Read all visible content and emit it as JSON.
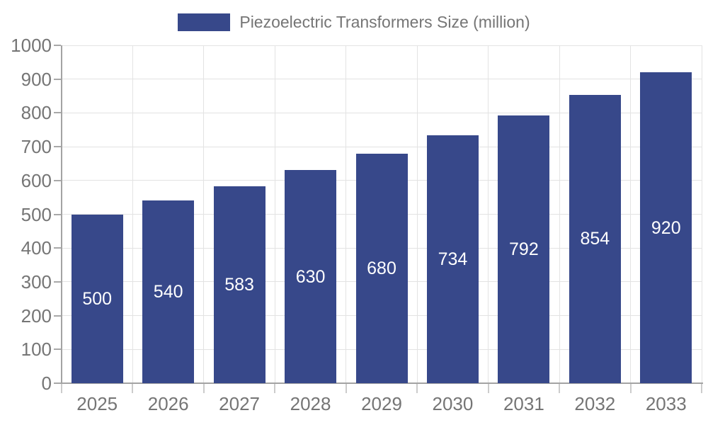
{
  "legend": {
    "label": "Piezoelectric Transformers Size (million)"
  },
  "colors": {
    "bar": "#37488a",
    "grid": "#e3e3e3",
    "axis_line": "#a3a3a3",
    "y_tick": "#a8a8a8",
    "x_tick": "#cccccc",
    "tick_label": "#757575",
    "legend_text": "#757575",
    "bar_label": "#ffffff",
    "background": "#ffffff"
  },
  "chart_data": {
    "type": "bar",
    "title": "",
    "categories": [
      "2025",
      "2026",
      "2027",
      "2028",
      "2029",
      "2030",
      "2031",
      "2032",
      "2033"
    ],
    "series": [
      {
        "name": "Piezoelectric Transformers Size (million)",
        "values": [
          500,
          540,
          583,
          630,
          680,
          734,
          792,
          854,
          920
        ]
      }
    ],
    "values": [
      500,
      540,
      583,
      630,
      680,
      734,
      792,
      854,
      920
    ],
    "bar_labels": [
      "500",
      "540",
      "583",
      "630",
      "680",
      "734",
      "792",
      "854",
      "920"
    ],
    "xlabel": "",
    "ylabel": "",
    "ylim": [
      0,
      1000
    ],
    "yticks": [
      0,
      100,
      200,
      300,
      400,
      500,
      600,
      700,
      800,
      900,
      1000
    ],
    "grid": true,
    "legend_position": "top-center",
    "bar_label_position": "inside-center"
  }
}
